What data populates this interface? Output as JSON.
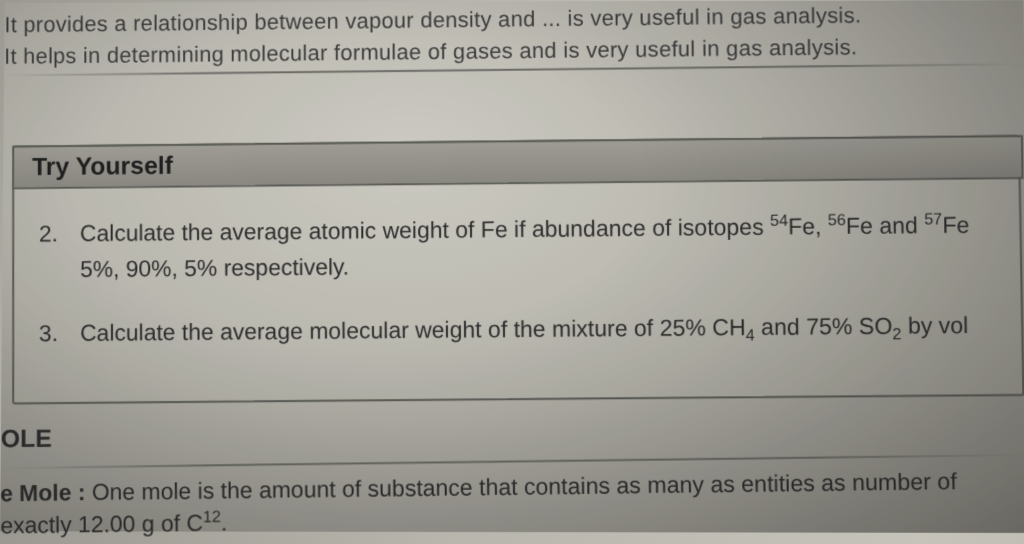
{
  "intro": {
    "line1": "It provides a relationship between vapour density and ... is very useful in gas analysis.",
    "line2": "It helps in determining molecular formulae of gases and is very useful in gas analysis."
  },
  "tryYourself": {
    "title": "Try Yourself",
    "q2": {
      "num": "2.",
      "text_part1": "Calculate the average atomic weight of Fe if abundance of isotopes ",
      "iso1_sup": "54",
      "iso1_sym": "Fe",
      "sep1": ", ",
      "iso2_sup": "56",
      "iso2_sym": "Fe",
      "sep2": " and ",
      "iso3_sup": "57",
      "iso3_sym": "Fe",
      "text_line2": "5%, 90%, 5% respectively."
    },
    "q3": {
      "num": "3.",
      "text_part1": "Calculate the average molecular weight of the mixture of 25% CH",
      "ch4_sub": "4",
      "mid": " and 75% SO",
      "so2_sub": "2",
      "tail": " by vol"
    }
  },
  "ole": "OLE",
  "moleDef": {
    "label": "e Mole : ",
    "text1": "One mole is the amount of substance that contains as many as entities as number of",
    "text2": "exactly 12.00 g of C",
    "c12_sup": "12",
    "period": "."
  }
}
